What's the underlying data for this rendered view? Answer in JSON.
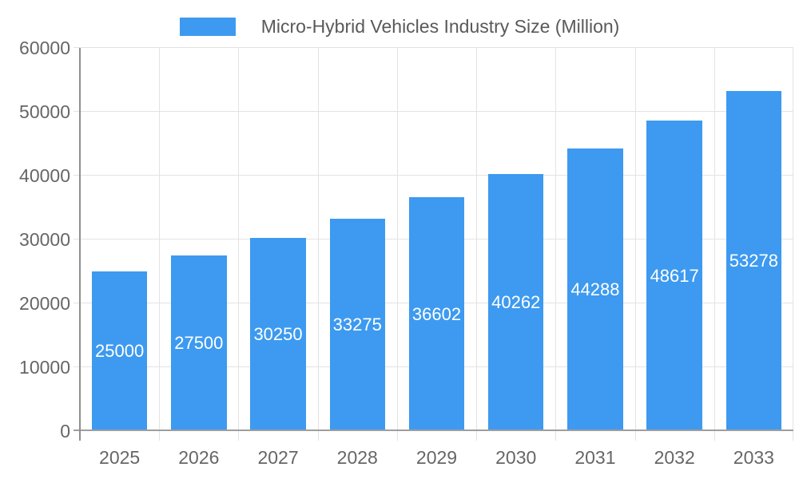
{
  "legend": {
    "label": "Micro-Hybrid Vehicles Industry Size (Million)"
  },
  "chart_data": {
    "type": "bar",
    "title": "Micro-Hybrid Vehicles Industry Size (Million)",
    "categories": [
      "2025",
      "2026",
      "2027",
      "2028",
      "2029",
      "2030",
      "2031",
      "2032",
      "2033"
    ],
    "values": [
      25000,
      27500,
      30250,
      33275,
      36602,
      40262,
      44288,
      48617,
      53278
    ],
    "bar_labels": [
      "25000",
      "27500",
      "30250",
      "33275",
      "36602",
      "40262",
      "44288",
      "48617",
      "53278"
    ],
    "xlabel": "",
    "ylabel": "",
    "ylim": [
      0,
      60000
    ],
    "yticks": [
      0,
      10000,
      20000,
      30000,
      40000,
      50000,
      60000
    ],
    "ytick_labels": [
      "0",
      "10000",
      "20000",
      "30000",
      "40000",
      "50000",
      "60000"
    ],
    "grid": true,
    "legend_position": "top",
    "colors": {
      "bar": "#3d9af0",
      "bar_label_text": "#ffffff",
      "axis_line": "#9e9e9e",
      "y_axis_line": "#8f8f8f",
      "gridline": "#e3e3e3",
      "tick_text": "#666666",
      "legend_text": "#595959",
      "background": "#ffffff"
    }
  }
}
